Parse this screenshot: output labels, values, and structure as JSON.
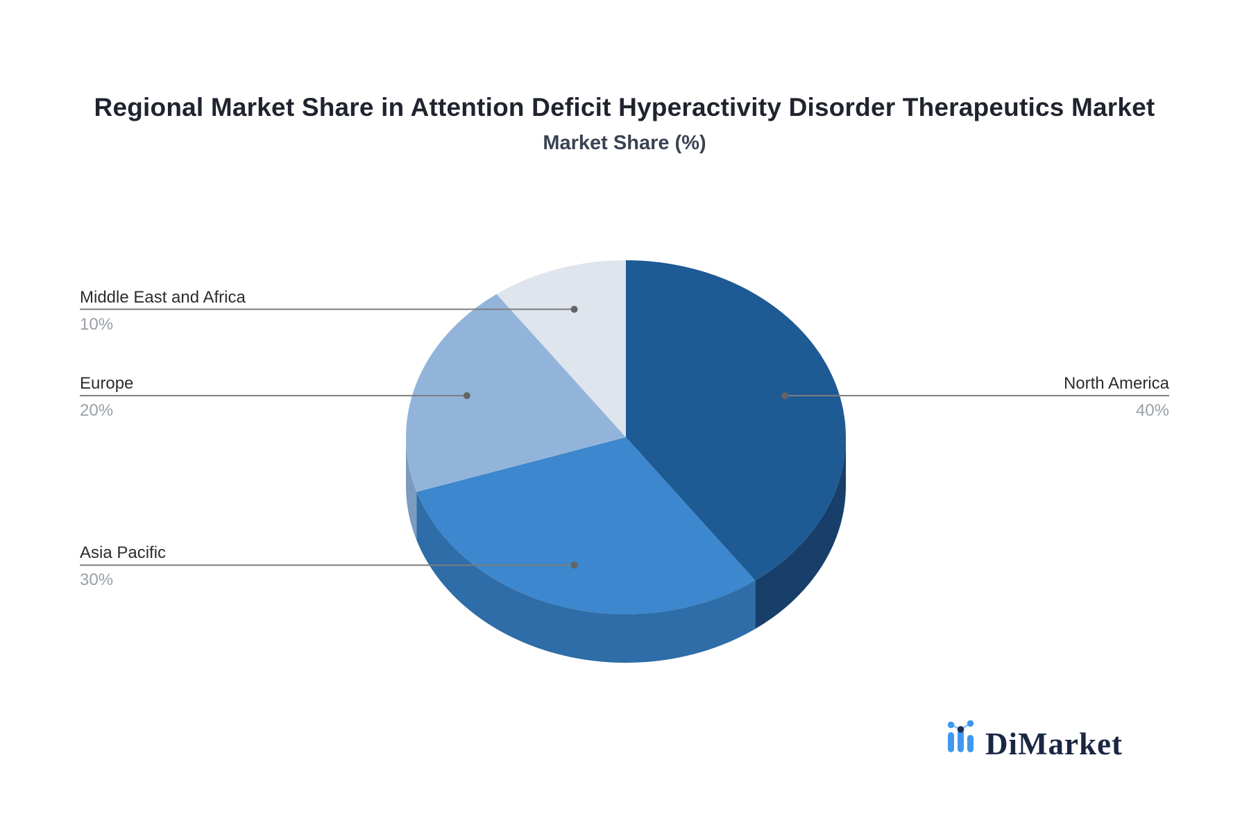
{
  "page": {
    "background": "#ffffff"
  },
  "title": "Regional Market Share in Attention Deficit Hyperactivity Disorder Therapeutics Market",
  "subtitle": "Market Share (%)",
  "chart_data": {
    "type": "pie",
    "style": "3d",
    "start_angle_deg": 0,
    "direction": "clockwise",
    "labels": [
      "North America",
      "Asia Pacific",
      "Europe",
      "Middle East and Africa"
    ],
    "values": [
      40,
      30,
      20,
      10
    ],
    "value_labels": [
      "40%",
      "30%",
      "20%",
      "10%"
    ],
    "unit": "%",
    "colors": [
      "#1e5a94",
      "#3c87cd",
      "#93b4da",
      "#dfe5ed"
    ],
    "side_colors": [
      "#173f6a",
      "#2e6da7",
      "#7b9cc0",
      "#c9d2dd"
    ],
    "leader_line_color": "#7d7d7d",
    "leader_dot_color": "#646464",
    "label_color": "#2c2c2c",
    "value_label_color": "#9aa0a6",
    "legend_position": "none",
    "title": "Regional Market Share in Attention Deficit Hyperactivity Disorder Therapeutics Market",
    "subtitle": "Market Share (%)"
  },
  "brand": {
    "name": "DiMarket",
    "text_color": "#1b2742",
    "bar_color": "#3f97f0",
    "dot_color": "#1c2f55",
    "line_color": "#8fbdf3"
  }
}
